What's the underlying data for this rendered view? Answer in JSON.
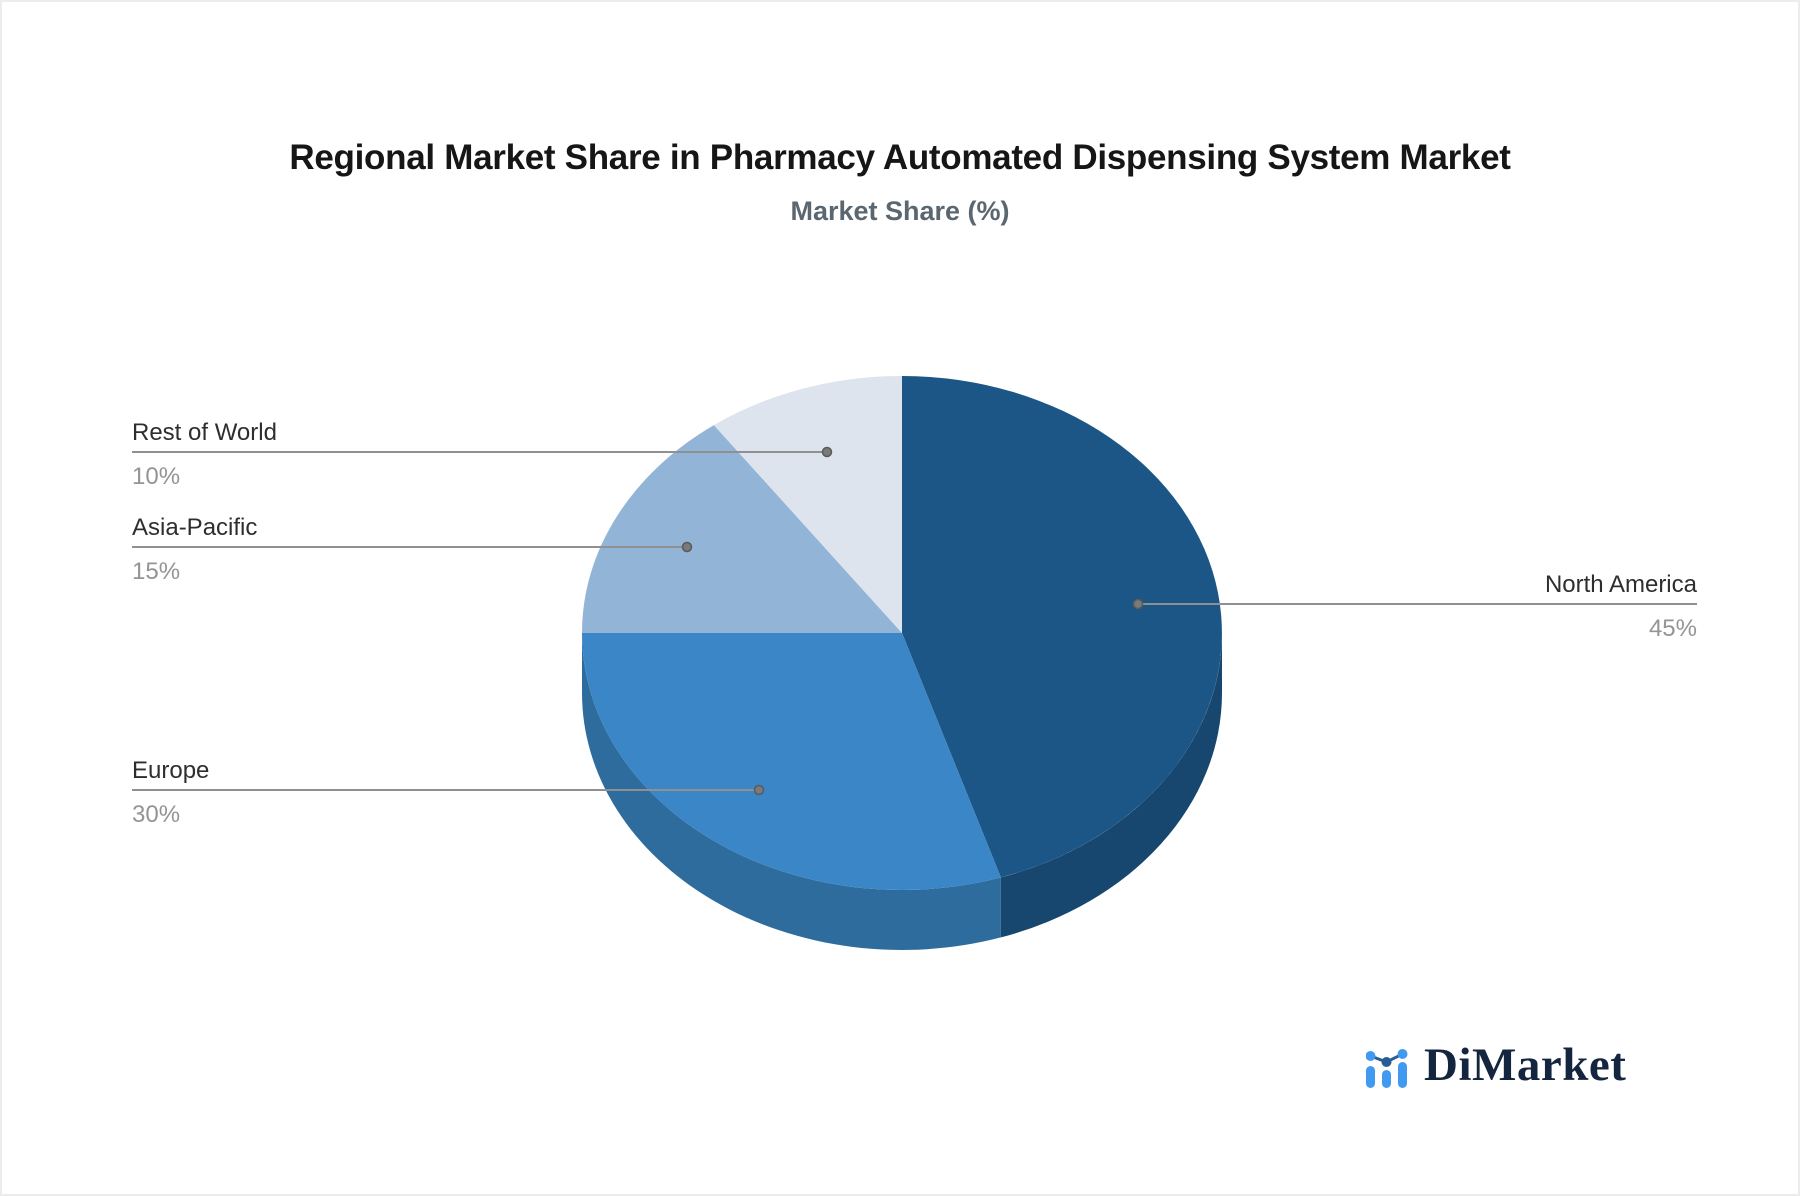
{
  "title": "Regional Market Share in Pharmacy Automated Dispensing System Market",
  "subtitle": "Market Share (%)",
  "chart_data": {
    "type": "pie",
    "title": "Regional Market Share in Pharmacy Automated Dispensing System Market",
    "subtitle": "Market Share (%)",
    "effect": "3d",
    "start_angle_deg": 0,
    "direction": "clockwise",
    "legend_position": "callout-labels",
    "grid": "off",
    "slices": [
      {
        "label": "North America",
        "value": 45,
        "display": "45%",
        "color": "#1c5687",
        "side_color": "#17476e"
      },
      {
        "label": "Europe",
        "value": 30,
        "display": "30%",
        "color": "#3a86c7",
        "side_color": "#2f6c9e"
      },
      {
        "label": "Asia-Pacific",
        "value": 15,
        "display": "15%",
        "color": "#92b4d6"
      },
      {
        "label": "Rest of World",
        "value": 10,
        "display": "10%",
        "color": "#dde4ee"
      }
    ]
  },
  "callout_style": {
    "line_color": "#909090",
    "dot_color": "#7a7a7a",
    "label_color": "#2e2e2e",
    "percent_color": "#949494"
  },
  "branding": {
    "logo_text": "DiMarket",
    "logo_text_color": "#14263f",
    "icon": "bar-line-chart-icon",
    "icon_bar_color": "#429af0",
    "icon_line_color": "#2a5d94"
  }
}
